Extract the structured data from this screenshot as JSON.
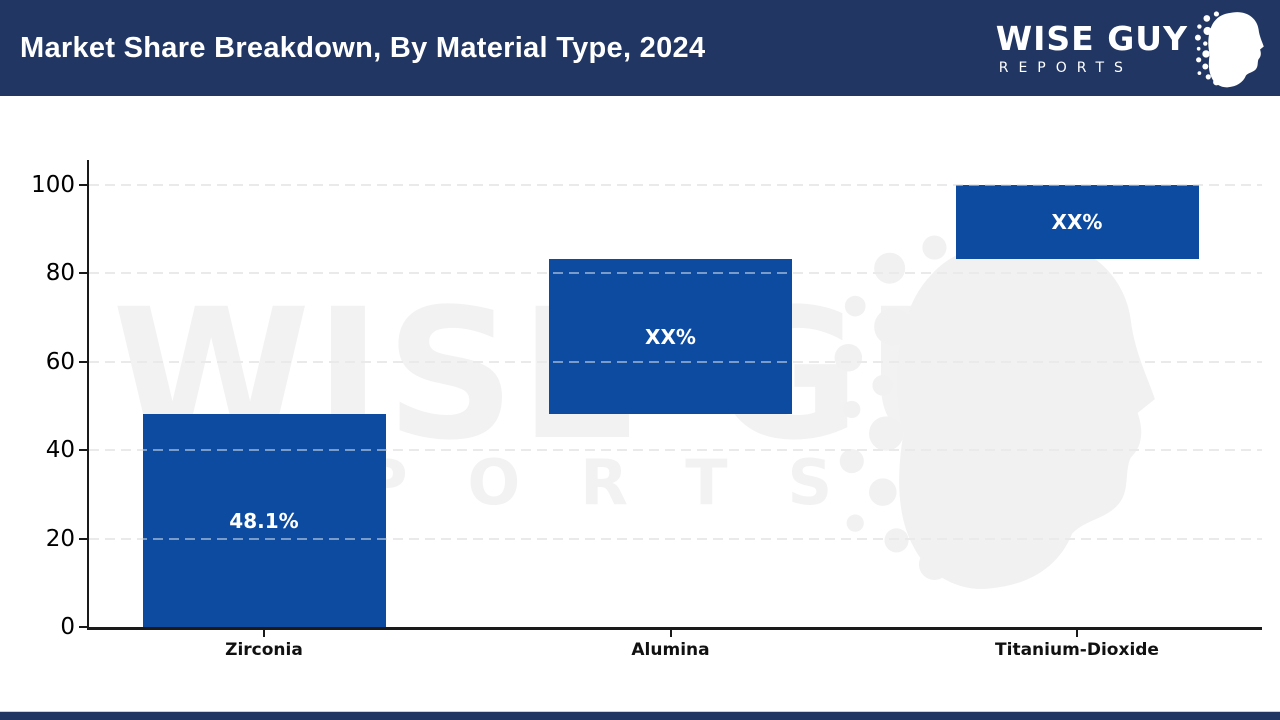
{
  "header": {
    "title": "Market Share Breakdown, By Material Type, 2024",
    "logo": {
      "line1": "WISE GUY",
      "line2": "REPORTS",
      "face_icon": "dotted-face-profile"
    }
  },
  "watermark": {
    "line1": "WISE GU",
    "line2": "REPORTS",
    "face_icon": "dotted-face-profile"
  },
  "colors": {
    "header_bg": "#213663",
    "bar_blue": "#0d4ba1",
    "gridline": "#d9d9d9",
    "axis": "#1a1a1a",
    "watermark": "#f2f2f2"
  },
  "chart_data": {
    "type": "bar",
    "subtype": "waterfall",
    "title": "Market Share Breakdown, By Material Type, 2024",
    "categories": [
      "Zirconia",
      "Alumina",
      "Titanium-Dioxide"
    ],
    "series": [
      {
        "name": "Market Share",
        "segments": [
          {
            "category": "Zirconia",
            "start": 0,
            "end": 48.1,
            "label": "48.1%"
          },
          {
            "category": "Alumina",
            "start": 48.1,
            "end": 83.3,
            "label": "XX%"
          },
          {
            "category": "Titanium-Dioxide",
            "start": 83.3,
            "end": 100,
            "label": "XX%"
          }
        ]
      }
    ],
    "bar_labels": [
      "48.1%",
      "XX%",
      "XX%"
    ],
    "xlabel": "",
    "ylabel": "",
    "y_ticks": [
      0,
      20,
      40,
      60,
      80,
      100
    ],
    "ylim": [
      0,
      105
    ],
    "grid": "dashed horizontal",
    "legend": "none",
    "bar_color": "#0d4ba1"
  }
}
